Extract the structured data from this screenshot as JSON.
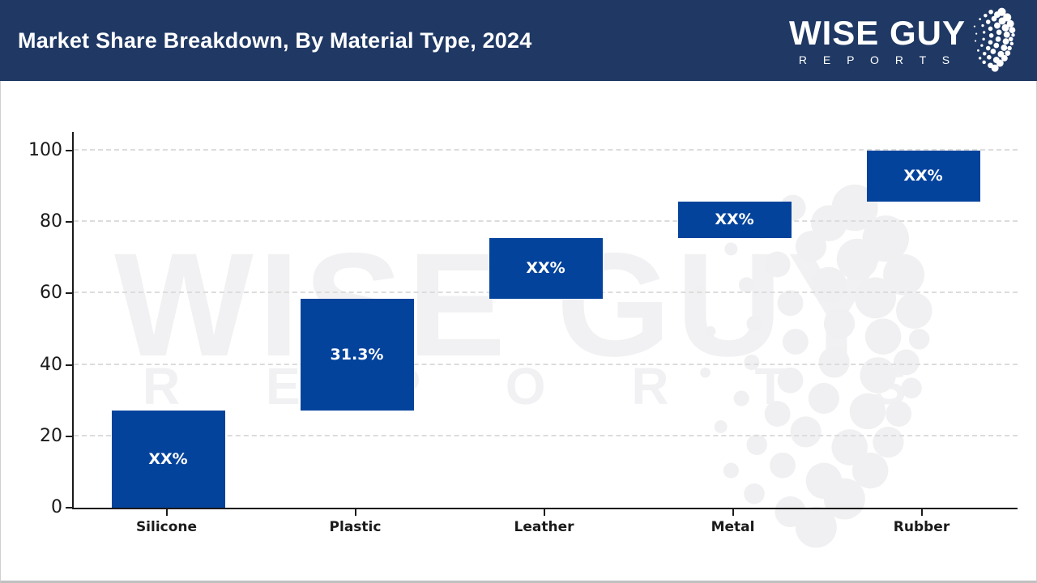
{
  "header": {
    "title": "Market Share Breakdown, By Material Type, 2024",
    "logo": {
      "line1": "WISE GUY",
      "line2": "R E P O R T S"
    }
  },
  "watermark": {
    "line1": "WISE GUY",
    "line2": "R E P O R T S"
  },
  "colors": {
    "header_bg": "#1f3864",
    "bar": "#04439c",
    "axis": "#1a1a1a",
    "grid": "#dcdcdc",
    "watermark": "#f1f1f3"
  },
  "chart_data": {
    "type": "bar",
    "subtype": "waterfall-floating-bars",
    "title": "Market Share Breakdown, By Material Type, 2024",
    "xlabel": "",
    "ylabel": "",
    "ylim": [
      0,
      100
    ],
    "yticks": [
      0,
      20,
      40,
      60,
      80,
      100
    ],
    "grid": "horizontal-dashed",
    "legend": "none",
    "categories": [
      "Silicone",
      "Plastic",
      "Leather",
      "Metal",
      "Rubber"
    ],
    "segments": [
      {
        "category": "Silicone",
        "start": 0,
        "end": 27.3,
        "label": "XX%"
      },
      {
        "category": "Plastic",
        "start": 27.3,
        "end": 58.6,
        "label": "31.3%"
      },
      {
        "category": "Leather",
        "start": 58.6,
        "end": 75.5,
        "label": "XX%"
      },
      {
        "category": "Metal",
        "start": 75.5,
        "end": 85.8,
        "label": "XX%"
      },
      {
        "category": "Rubber",
        "start": 85.8,
        "end": 100,
        "label": "XX%"
      }
    ]
  }
}
